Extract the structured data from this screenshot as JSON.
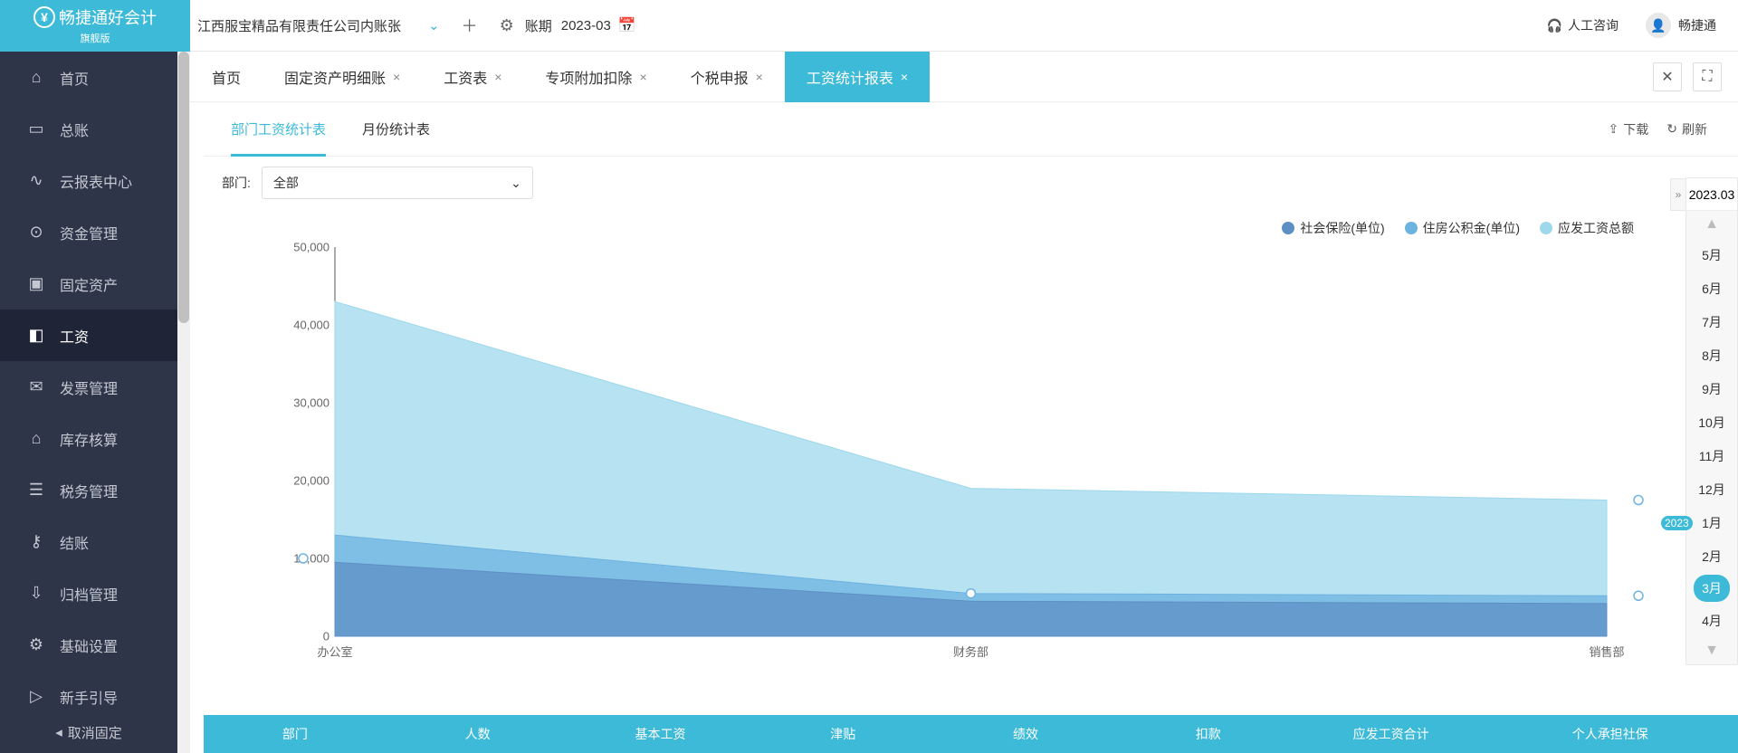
{
  "header": {
    "logo_main": "畅捷通好会计",
    "logo_sub": "旗舰版",
    "company": "江西服宝精品有限责任公司内账张",
    "period_label": "账期",
    "period_value": "2023-03",
    "consult": "人工咨询",
    "username": "畅捷通"
  },
  "sidebar": {
    "items": [
      {
        "icon": "⌂",
        "label": "首页"
      },
      {
        "icon": "▭",
        "label": "总账"
      },
      {
        "icon": "∿",
        "label": "云报表中心"
      },
      {
        "icon": "⊙",
        "label": "资金管理"
      },
      {
        "icon": "▣",
        "label": "固定资产"
      },
      {
        "icon": "◧",
        "label": "工资"
      },
      {
        "icon": "✉",
        "label": "发票管理"
      },
      {
        "icon": "⌂",
        "label": "库存核算"
      },
      {
        "icon": "☰",
        "label": "税务管理"
      },
      {
        "icon": "⚷",
        "label": "结账"
      },
      {
        "icon": "⇩",
        "label": "归档管理"
      },
      {
        "icon": "⚙",
        "label": "基础设置"
      },
      {
        "icon": "▷",
        "label": "新手引导"
      }
    ],
    "footer": "取消固定"
  },
  "tabs": [
    {
      "label": "首页",
      "closable": false
    },
    {
      "label": "固定资产明细账",
      "closable": true
    },
    {
      "label": "工资表",
      "closable": true
    },
    {
      "label": "专项附加扣除",
      "closable": true
    },
    {
      "label": "个税申报",
      "closable": true
    },
    {
      "label": "工资统计报表",
      "closable": true,
      "active": true
    }
  ],
  "sub_tabs": [
    {
      "label": "部门工资统计表",
      "active": true
    },
    {
      "label": "月份统计表"
    }
  ],
  "sub_actions": {
    "download": "下载",
    "refresh": "刷新"
  },
  "filter": {
    "label": "部门:",
    "value": "全部"
  },
  "chart": {
    "type": "area",
    "categories": [
      "办公室",
      "财务部",
      "销售部"
    ],
    "series": [
      {
        "name": "社会保险(单位)",
        "color": "#5d8fc5",
        "values": [
          9500,
          4500,
          4200
        ]
      },
      {
        "name": "住房公积金(单位)",
        "color": "#6db3e0",
        "values": [
          13000,
          5500,
          5200
        ]
      },
      {
        "name": "应发工资总额",
        "color": "#9dd8ec",
        "values": [
          43000,
          19000,
          17500
        ]
      }
    ],
    "y_ticks": [
      0,
      10000,
      20000,
      30000,
      40000,
      50000
    ],
    "y_labels": [
      "0",
      "10,000",
      "20,000",
      "30,000",
      "40,000",
      "50,000"
    ],
    "y_max": 50000,
    "background_color": "#ffffff",
    "axis_color": "#555555",
    "fill_opacity": 0.75,
    "marker_style": "circle-open",
    "marker_size": 5,
    "area_stroke_width": 1
  },
  "table_headers": [
    "部门",
    "人数",
    "基本工资",
    "津贴",
    "绩效",
    "扣款",
    "应发工资合计",
    "个人承担社保"
  ],
  "month_rail": {
    "header": "2023.03",
    "months": [
      "5月",
      "6月",
      "7月",
      "8月",
      "9月",
      "10月",
      "11月",
      "12月",
      "1月",
      "2月",
      "3月",
      "4月"
    ],
    "current": "3月",
    "year_tag": "2023",
    "year_tag_after_index": 7
  }
}
